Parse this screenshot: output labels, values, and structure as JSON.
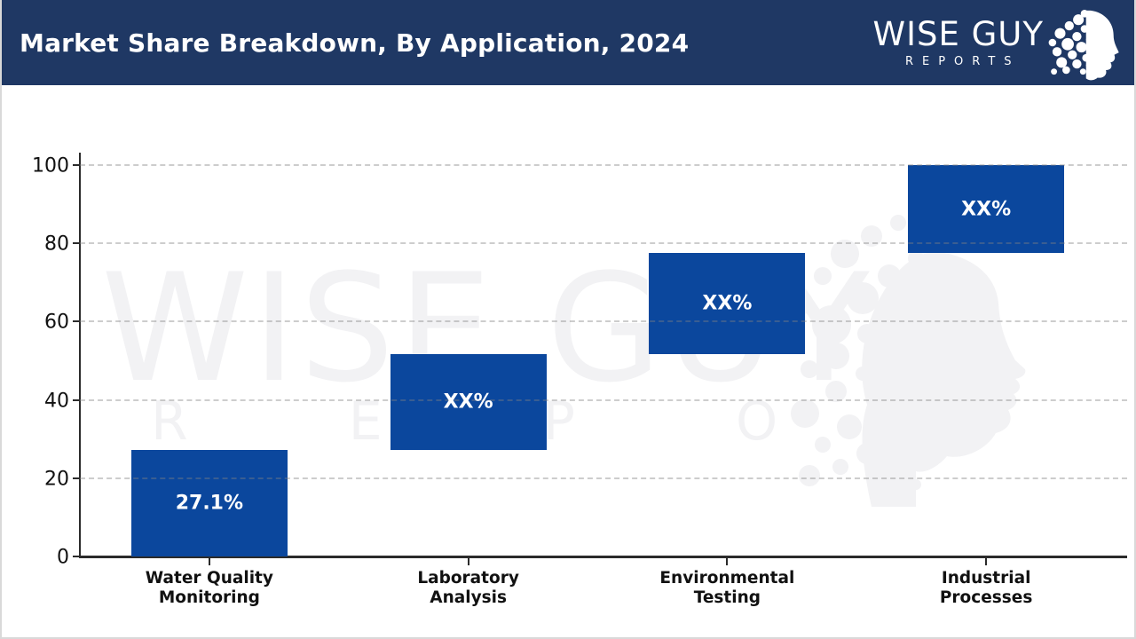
{
  "header": {
    "title": "Market Share Breakdown, By Application, 2024"
  },
  "logo": {
    "name_top": "WISE GUY",
    "name_bottom": "REPORTS"
  },
  "watermark": {
    "line1": "WISE GUY",
    "line2": "REPORTS"
  },
  "chart_data": {
    "type": "bar",
    "subtype": "floating-segment-waterfall",
    "title": "Market Share Breakdown, By Application, 2024",
    "categories": [
      "Water Quality\nMonitoring",
      "Laboratory\nAnalysis",
      "Environmental\nTesting",
      "Industrial\nProcesses"
    ],
    "segments": [
      {
        "category": "Water Quality Monitoring",
        "start": 0,
        "end": 27.1,
        "label": "27.1%"
      },
      {
        "category": "Laboratory Analysis",
        "start": 27.1,
        "end": 51.8,
        "label": "XX%"
      },
      {
        "category": "Environmental Testing",
        "start": 51.8,
        "end": 77.5,
        "label": "XX%"
      },
      {
        "category": "Industrial Processes",
        "start": 77.5,
        "end": 100,
        "label": "XX%"
      }
    ],
    "yticks": [
      0,
      20,
      40,
      60,
      80,
      100
    ],
    "ylim": [
      0,
      102
    ],
    "xlabel": "",
    "ylabel": "",
    "grid": "horizontal-dashed",
    "legend": "none",
    "colors": {
      "bar": "#0b479d",
      "bar_label": "#ffffff",
      "header_bg": "#1f3864",
      "watermark": "#f2f2f4",
      "grid": "#cfcfcf",
      "axis": "#2b2b2b",
      "text": "#111111"
    }
  }
}
